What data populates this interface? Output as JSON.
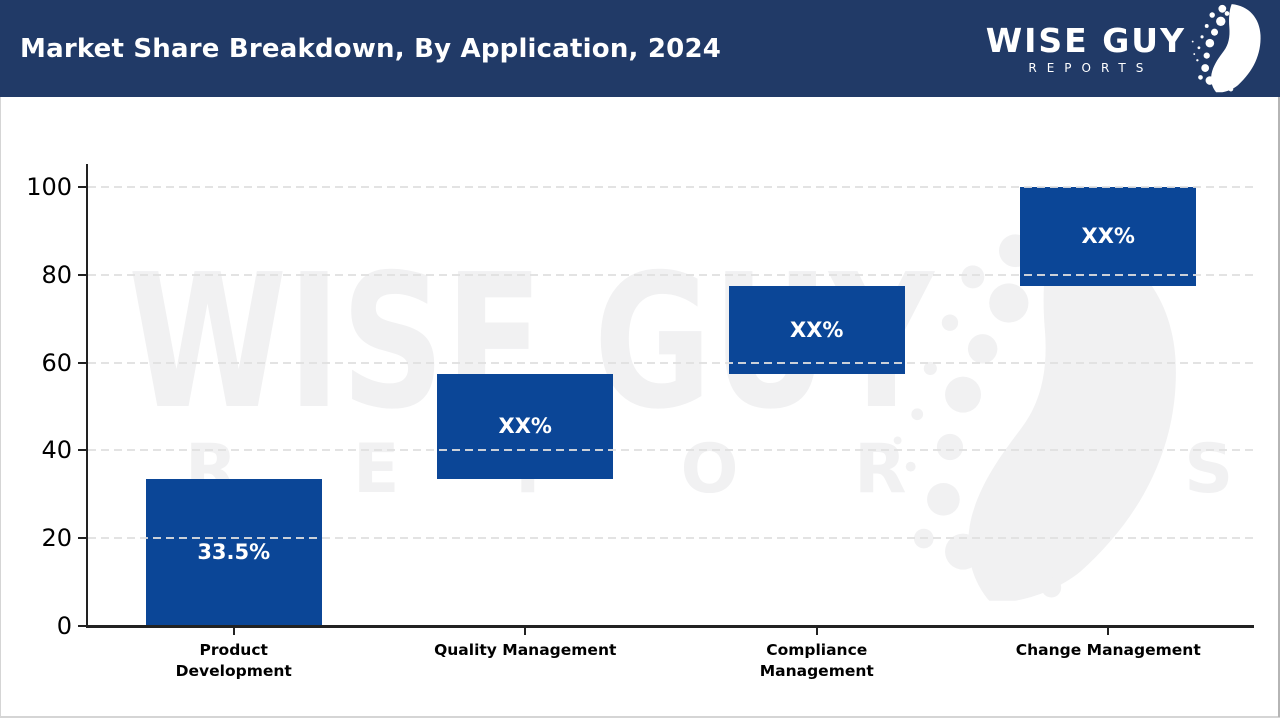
{
  "header": {
    "title": "Market Share Breakdown, By Application, 2024",
    "logo": {
      "name": "WISE GUY",
      "subname": "REPORTS"
    }
  },
  "watermark": {
    "big_text": "WISE GUY",
    "sub_text": "R E P O R T S"
  },
  "chart_data": {
    "type": "bar",
    "subtype": "waterfall",
    "title": "Market Share Breakdown, By Application, 2024",
    "categories": [
      "Product Development",
      "Quality Management",
      "Compliance Management",
      "Change Management"
    ],
    "tick_label_lines": [
      [
        "Product",
        "Development"
      ],
      [
        "Quality Management"
      ],
      [
        "Compliance",
        "Management"
      ],
      [
        "Change Management"
      ]
    ],
    "segments": [
      {
        "category": "Product Development",
        "start": 0,
        "end": 33.5,
        "label": "33.5%"
      },
      {
        "category": "Quality Management",
        "start": 33.5,
        "end": 57.5,
        "label": "XX%"
      },
      {
        "category": "Compliance Management",
        "start": 57.5,
        "end": 77.5,
        "label": "XX%"
      },
      {
        "category": "Change Management",
        "start": 77.5,
        "end": 100,
        "label": "XX%"
      }
    ],
    "yticks": [
      0,
      20,
      40,
      60,
      80,
      100
    ],
    "ylim": [
      0,
      107
    ],
    "grid": {
      "visible": true,
      "style": "dashed",
      "color": "#e0e0e0",
      "position": "above-bars"
    },
    "legend": "none",
    "colors": {
      "bar": "#0b4697",
      "bar_label": "#ffffff",
      "axis": "#222222",
      "tick_label": "#000000",
      "header_bg": "#213a67",
      "header_text": "#ffffff",
      "watermark": "#f1f1f2"
    }
  }
}
